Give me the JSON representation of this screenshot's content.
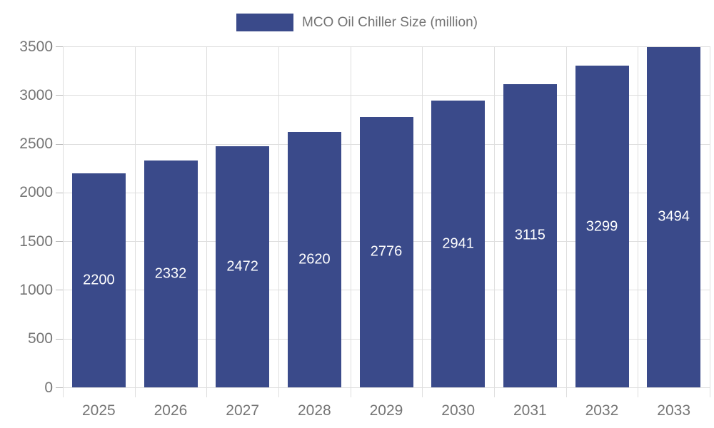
{
  "legend": {
    "label": "MCO Oil Chiller Size (million)"
  },
  "chart_data": {
    "type": "bar",
    "title": "MCO Oil Chiller Size (million)",
    "categories": [
      "2025",
      "2026",
      "2027",
      "2028",
      "2029",
      "2030",
      "2031",
      "2032",
      "2033"
    ],
    "values": [
      2200,
      2332,
      2472,
      2620,
      2776,
      2941,
      3115,
      3299,
      3494
    ],
    "xlabel": "",
    "ylabel": "",
    "ylim": [
      0,
      3500
    ],
    "yticks": [
      0,
      500,
      1000,
      1500,
      2000,
      2500,
      3000,
      3500
    ],
    "grid": true,
    "legend_position": "top",
    "bar_color": "#3A4A8A",
    "value_label_color": "#ffffff",
    "axis_text_color": "#757575",
    "gridline_color": "#dedede"
  }
}
